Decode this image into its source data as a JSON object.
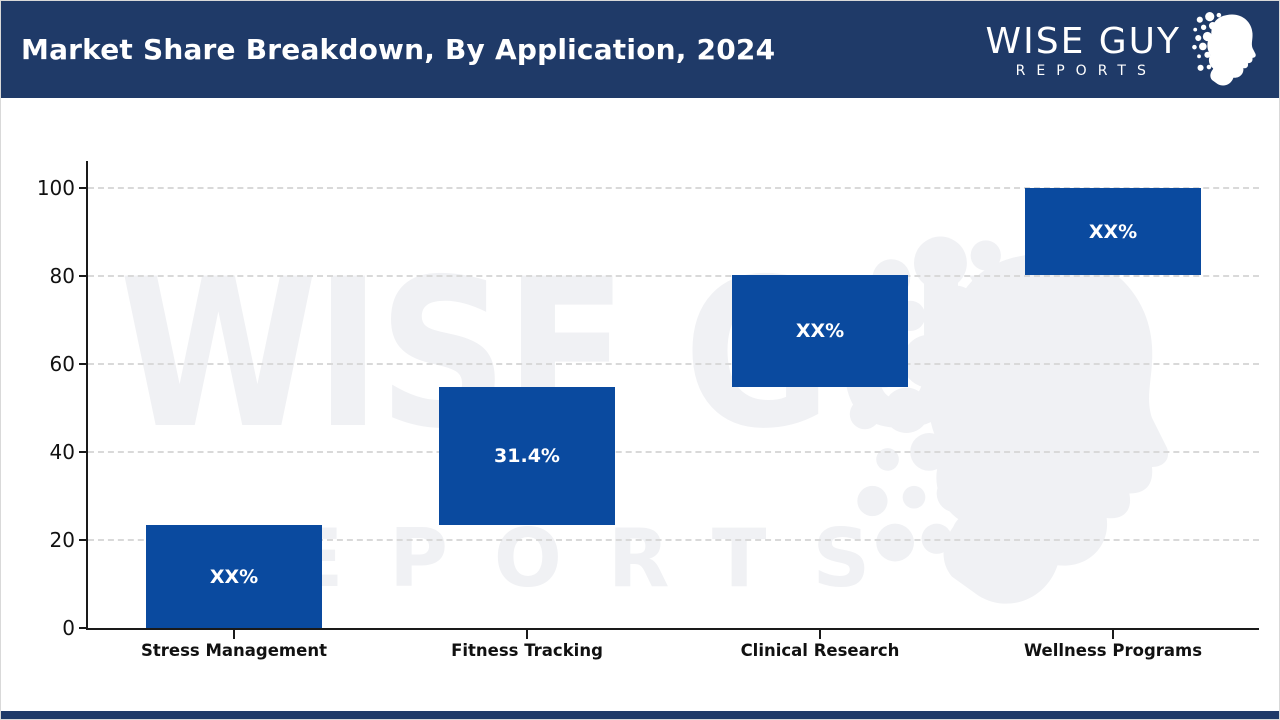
{
  "header": {
    "title": "Market Share Breakdown, By Application, 2024",
    "logo": {
      "line1": "WISE GUY",
      "line2": "REPORTS"
    }
  },
  "watermark": {
    "line1": "WISE GUY",
    "line2": "REPORTS"
  },
  "colors": {
    "header_bg": "#1f3a68",
    "bar_fill": "#0a4a9f",
    "grid": "#d9d9d9",
    "watermark": "#f0f1f4",
    "axis": "#1a1a1a",
    "bar_label_text": "#ffffff"
  },
  "chart_data": {
    "type": "bar",
    "subtype": "waterfall-floating-bars",
    "title": "Market Share Breakdown, By Application, 2024",
    "categories": [
      "Stress Management",
      "Fitness Tracking",
      "Clinical Research",
      "Wellness Programs"
    ],
    "segments": [
      {
        "category": "Stress Management",
        "start": 0,
        "end": 23.4,
        "value": 23.4,
        "label": "XX%"
      },
      {
        "category": "Fitness Tracking",
        "start": 23.4,
        "end": 54.8,
        "value": 31.4,
        "label": "31.4%"
      },
      {
        "category": "Clinical Research",
        "start": 54.8,
        "end": 80.2,
        "value": 25.4,
        "label": "XX%"
      },
      {
        "category": "Wellness Programs",
        "start": 80.2,
        "end": 100,
        "value": 19.8,
        "label": "XX%"
      }
    ],
    "xlabel": "",
    "ylabel": "",
    "yticks": [
      0,
      20,
      40,
      60,
      80,
      100
    ],
    "ylim": [
      0,
      106
    ],
    "grid": "horizontal-dashed",
    "legend": "none"
  }
}
